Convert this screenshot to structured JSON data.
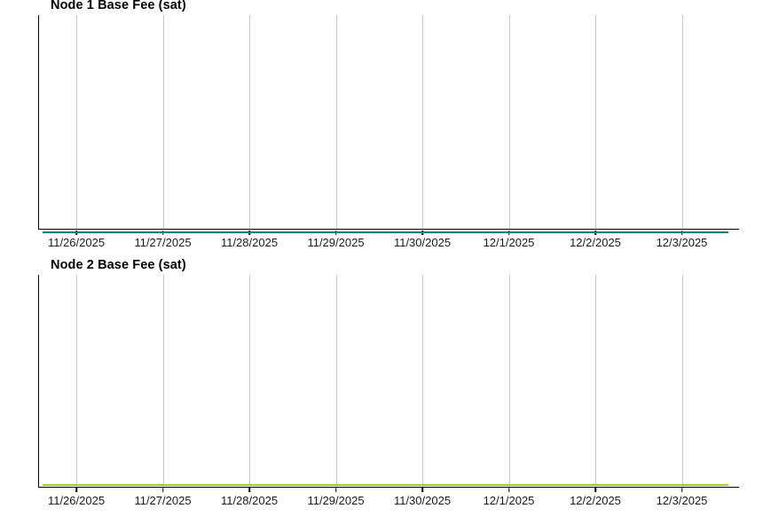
{
  "palette": {
    "background": "#ffffff",
    "axis_color": "#000000",
    "gridline_color": "#c6c6c6",
    "tick_label_color": "#1a1a1a",
    "title_color": "#000000"
  },
  "chart_data": [
    {
      "type": "line",
      "title": "Node 1 Base Fee (sat)",
      "x": [
        "11/26/2025",
        "11/27/2025",
        "11/28/2025",
        "11/29/2025",
        "11/30/2025",
        "12/1/2025",
        "12/2/2025",
        "12/3/2025"
      ],
      "series": [
        {
          "name": "Node 1 Base Fee (sat)",
          "values": [
            0,
            0,
            0,
            0,
            0,
            0,
            0,
            0
          ]
        }
      ],
      "line_color": "#0f8585",
      "xlabel": "",
      "ylabel": "",
      "y_tick_labels": [],
      "grid": "vertical-only",
      "legend": "none",
      "layout_hint": "flat line hugging the x-axis across the full date range"
    },
    {
      "type": "line",
      "title": "Node 2 Base Fee (sat)",
      "x": [
        "11/26/2025",
        "11/27/2025",
        "11/28/2025",
        "11/29/2025",
        "11/30/2025",
        "12/1/2025",
        "12/2/2025",
        "12/3/2025"
      ],
      "series": [
        {
          "name": "Node 2 Base Fee (sat)",
          "values": [
            0,
            0,
            0,
            0,
            0,
            0,
            0,
            0
          ]
        }
      ],
      "line_color": "#9acd32",
      "xlabel": "",
      "ylabel": "",
      "y_tick_labels": [],
      "grid": "vertical-only",
      "legend": "none",
      "layout_hint": "flat line hugging the x-axis across the full date range"
    }
  ]
}
